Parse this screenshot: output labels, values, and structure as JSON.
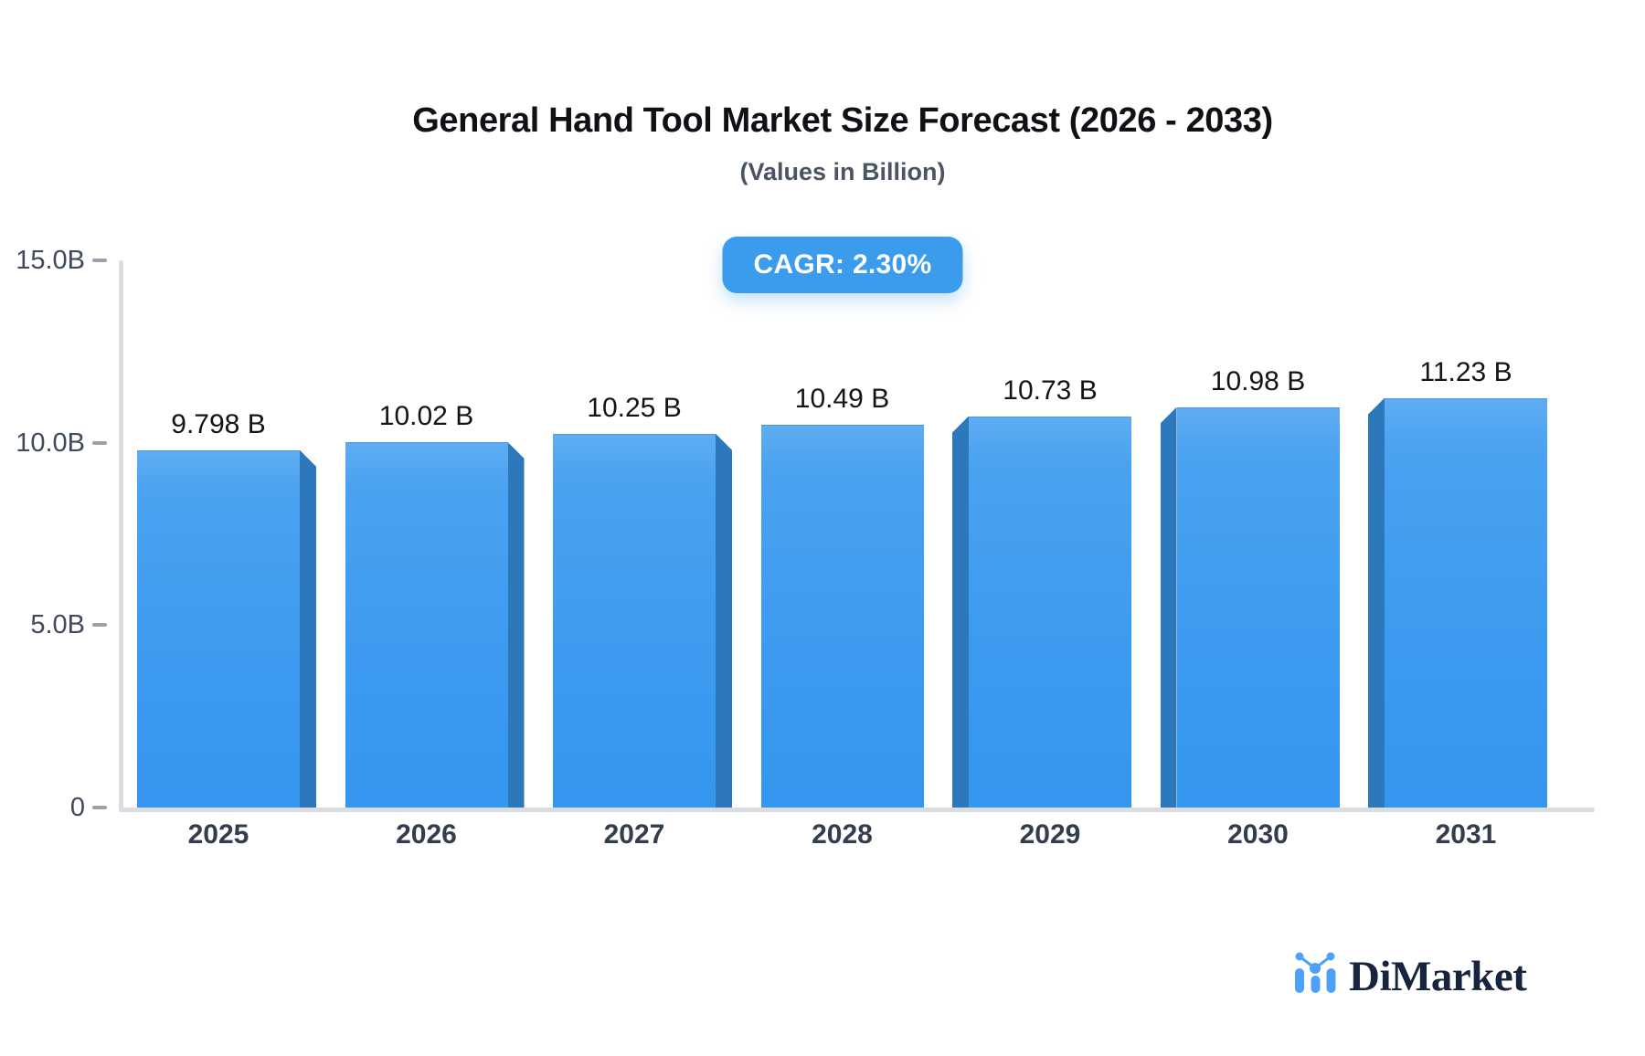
{
  "title": "General Hand Tool Market Size Forecast (2026 - 2033)",
  "subtitle": "(Values in Billion)",
  "badge": {
    "label": "CAGR: 2.30%",
    "color": "#3b9bec"
  },
  "logo": {
    "text": "DiMarket",
    "icon": "bar-line-chart-icon",
    "icon_color": "#4da1fa",
    "text_color": "#17243d"
  },
  "chart_data": {
    "type": "bar",
    "title": "General Hand Tool Market Size Forecast (2026 - 2033)",
    "subtitle": "(Values in Billion)",
    "categories": [
      "2025",
      "2026",
      "2027",
      "2028",
      "2029",
      "2030",
      "2031"
    ],
    "values": [
      9.798,
      10.02,
      10.25,
      10.49,
      10.73,
      10.98,
      11.23
    ],
    "bar_labels": [
      "9.798 B",
      "10.02 B",
      "10.25 B",
      "10.49 B",
      "10.73 B",
      "10.98 B",
      "11.23 B"
    ],
    "unit": "B",
    "xlabel": "",
    "ylabel": "",
    "ylim": [
      0,
      15
    ],
    "y_ticks": [
      {
        "label": "15.0B",
        "value": 15
      },
      {
        "label": "10.0B",
        "value": 10
      },
      {
        "label": "5.0B",
        "value": 5
      },
      {
        "label": "0",
        "value": 0
      }
    ],
    "grid": "off",
    "legend": "none",
    "bar_color_top": "#5fadf3",
    "bar_color_bottom": "#3496ee",
    "bar_side_color": "#2d77bb",
    "axis_color": "#d9dce1",
    "tick_color": "#9aa1ab"
  }
}
